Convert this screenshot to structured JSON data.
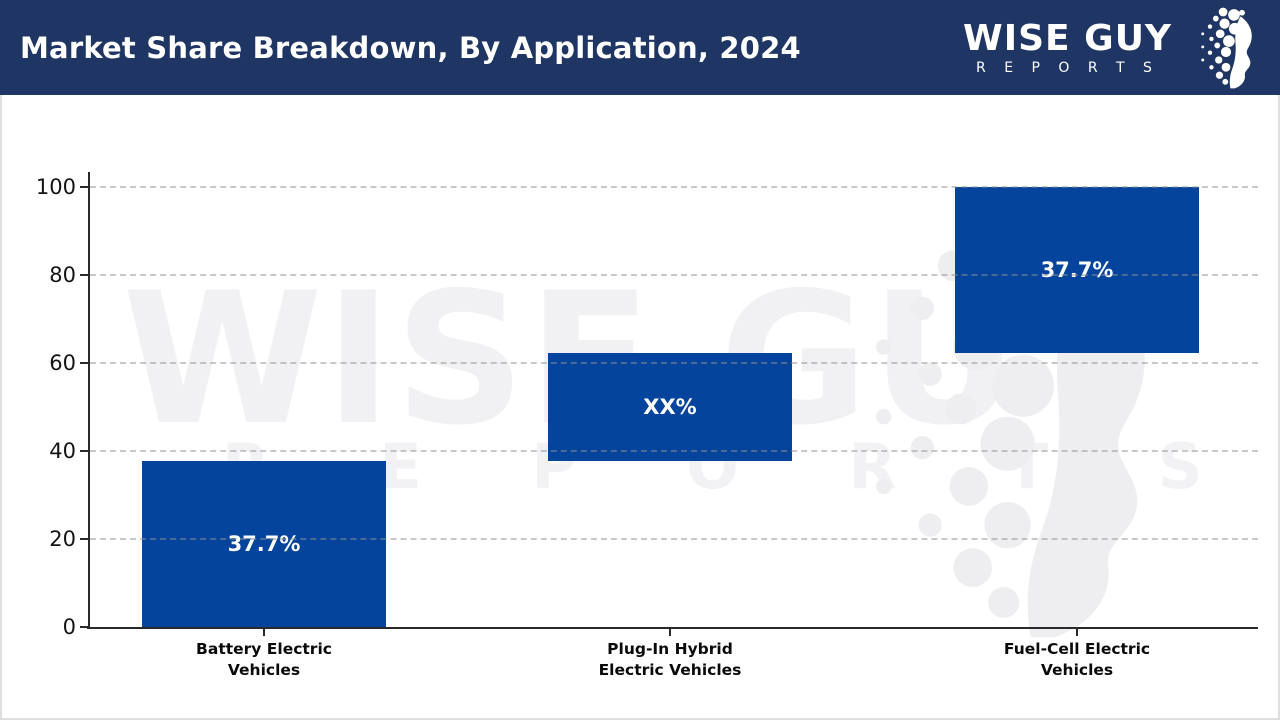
{
  "header": {
    "title": "Market Share Breakdown, By Application, 2024",
    "bg_color": "#1f3563",
    "logo_line1": "WISE GUY",
    "logo_line2": "R E P O R T S"
  },
  "watermark": {
    "line1": "WISE GUY",
    "line2": "R E P O R T S"
  },
  "chart_data": {
    "type": "bar",
    "variant": "floating-waterfall-segments",
    "title": "Market Share Breakdown, By Application, 2024",
    "categories": [
      [
        "Battery Electric",
        "Vehicles"
      ],
      [
        "Plug-In Hybrid",
        "Electric Vehicles"
      ],
      [
        "Fuel-Cell Electric",
        "Vehicles"
      ]
    ],
    "series": [
      {
        "name": "Market Share %",
        "segments": [
          {
            "from": 0,
            "to": 37.7,
            "label": "37.7%"
          },
          {
            "from": 37.7,
            "to": 62.3,
            "label": "XX%"
          },
          {
            "from": 62.3,
            "to": 100,
            "label": "37.7%"
          }
        ]
      }
    ],
    "ylim": [
      0,
      100
    ],
    "yticks": [
      0,
      20,
      40,
      60,
      80,
      100
    ],
    "grid": true,
    "grid_style": "dashed",
    "legend": "none",
    "bar_color": "#05449c",
    "bar_label_color": "#ffffff",
    "axis_color": "#2a2a2a",
    "header_color": "#1f3563"
  }
}
